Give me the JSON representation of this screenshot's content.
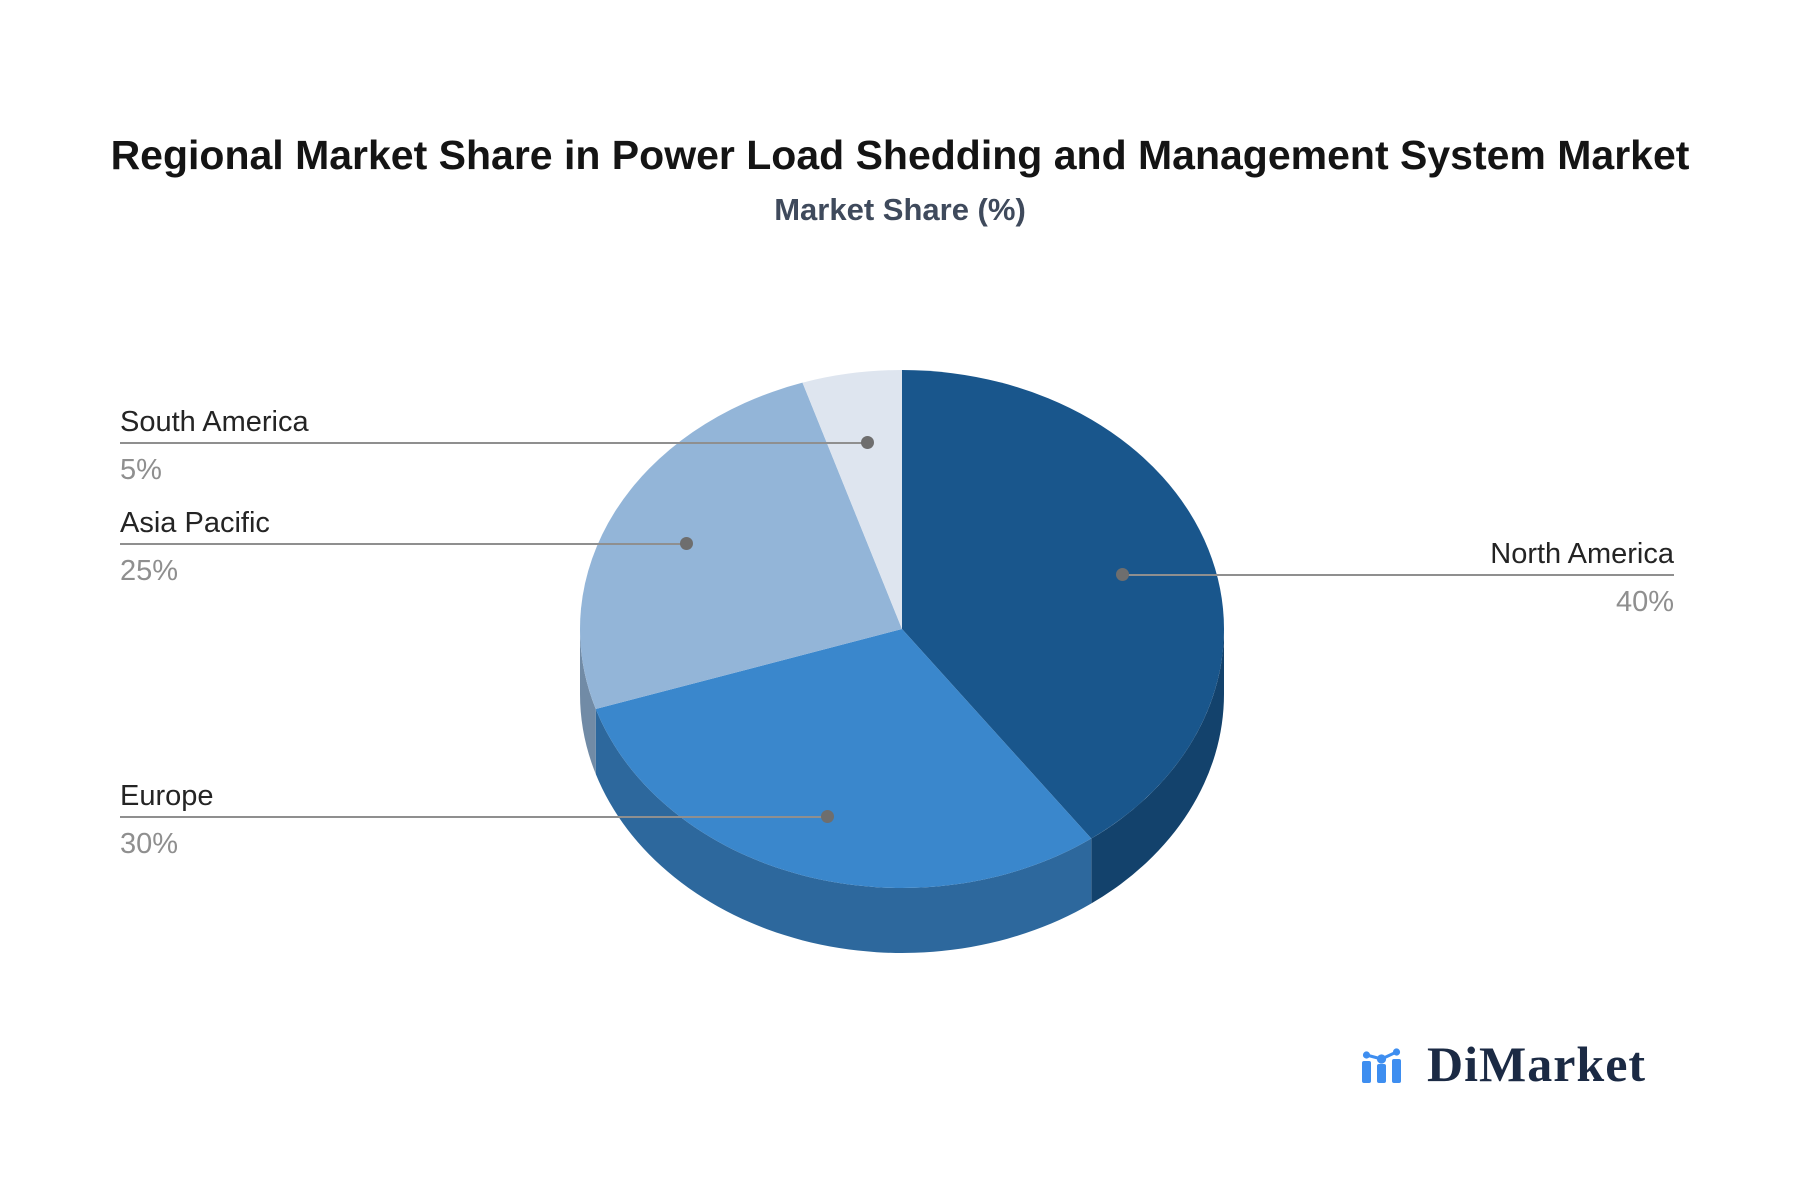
{
  "chart_data": {
    "type": "pie",
    "title": "Regional Market Share in Power Load Shedding and Management System Market",
    "subtitle": "Market Share (%)",
    "unit": "%",
    "effect": "3d",
    "start_angle_deg": 0,
    "direction": "clockwise",
    "categories": [
      "North America",
      "Europe",
      "Asia Pacific",
      "South America"
    ],
    "values": [
      40,
      30,
      25,
      5
    ],
    "colors": [
      "#19568C",
      "#3A87CC",
      "#93B5D8",
      "#DEE5EF"
    ],
    "legend_position": "none",
    "labels": [
      {
        "name": "North America",
        "pct": "40%",
        "side": "right"
      },
      {
        "name": "Europe",
        "pct": "30%",
        "side": "left"
      },
      {
        "name": "Asia Pacific",
        "pct": "25%",
        "side": "left"
      },
      {
        "name": "South America",
        "pct": "5%",
        "side": "left"
      }
    ]
  },
  "branding": {
    "logo_text": "DiMarket",
    "logo_icon": "bar-chart-trend-icon",
    "logo_text_color": "#1B2A44",
    "logo_accent_color": "#3E8EF0"
  }
}
